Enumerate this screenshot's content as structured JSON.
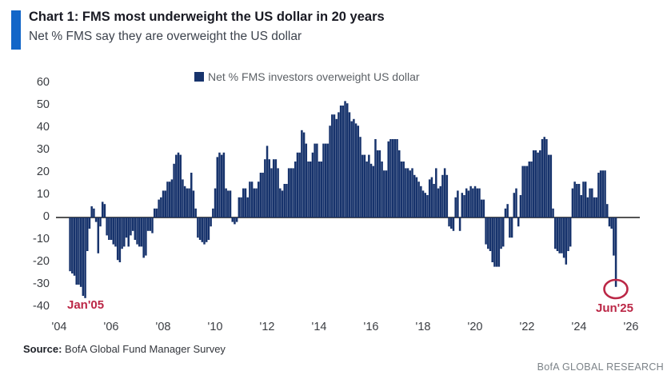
{
  "header": {
    "title": "Chart 1: FMS most underweight the US dollar in 20 years",
    "subtitle": "Net % FMS say they are overweight the US dollar",
    "accent_color": "#1266c8"
  },
  "chart_data": {
    "type": "bar",
    "title": "Chart 1: FMS most underweight the US dollar in 20 years",
    "subtitle": "Net % FMS say they are overweight the US dollar",
    "legend": "Net % FMS investors overweight US dollar",
    "legend_position": "top-center",
    "bar_color": "#17336c",
    "grid": false,
    "ylabel": "",
    "xlabel": "",
    "ylim": [
      -40,
      60
    ],
    "yticks": [
      60,
      50,
      40,
      30,
      20,
      10,
      0,
      -10,
      -20,
      -30,
      -40
    ],
    "xticks": [
      "'04",
      "'06",
      "'08",
      "'10",
      "'12",
      "'14",
      "'16",
      "'18",
      "'20",
      "'22",
      "'24",
      "'26"
    ],
    "frequency": "monthly",
    "x_start": "2004-06",
    "x_end": "2025-06",
    "annotations": [
      {
        "text": "Jan'05",
        "month": "2005-01",
        "value": -36,
        "color": "#bb2746",
        "circled": false
      },
      {
        "text": "Jun'25",
        "month": "2025-06",
        "value": -31,
        "color": "#bb2746",
        "circled": true
      }
    ],
    "series": [
      {
        "name": "Net % FMS investors overweight US dollar",
        "values": [
          -24,
          -25,
          -26,
          -30,
          -30,
          -31,
          -35,
          -36,
          -15,
          -5,
          5,
          4,
          -2,
          -16,
          -4,
          7,
          6,
          -8,
          -10,
          -10,
          -12,
          -13,
          -19,
          -20,
          -14,
          -13,
          -9,
          -13,
          -8,
          -6,
          -10,
          -12,
          -13,
          -13,
          -18,
          -17,
          -6,
          -6,
          -7,
          4,
          4,
          8,
          9,
          12,
          12,
          16,
          16,
          17,
          24,
          28,
          29,
          28,
          17,
          14,
          13,
          13,
          20,
          12,
          4,
          -9,
          -10,
          -11,
          -12,
          -11,
          -10,
          -4,
          4,
          13,
          27,
          29,
          28,
          29,
          13,
          12,
          12,
          -2,
          -3,
          -2,
          9,
          9,
          13,
          13,
          9,
          16,
          16,
          13,
          13,
          16,
          20,
          20,
          26,
          32,
          26,
          22,
          26,
          26,
          22,
          13,
          12,
          15,
          15,
          22,
          22,
          22,
          25,
          29,
          29,
          39,
          38,
          33,
          25,
          25,
          29,
          33,
          33,
          25,
          25,
          33,
          33,
          33,
          41,
          46,
          46,
          44,
          47,
          50,
          50,
          52,
          51,
          47,
          43,
          44,
          42,
          41,
          36,
          28,
          28,
          25,
          28,
          24,
          23,
          35,
          30,
          30,
          25,
          21,
          21,
          34,
          35,
          35,
          35,
          35,
          30,
          25,
          25,
          22,
          22,
          21,
          22,
          19,
          18,
          16,
          14,
          12,
          11,
          10,
          17,
          18,
          15,
          22,
          13,
          14,
          19,
          22,
          19,
          -4,
          -5,
          -6,
          9,
          12,
          -6,
          11,
          10,
          13,
          12,
          14,
          13,
          14,
          13,
          13,
          8,
          8,
          -12,
          -14,
          -15,
          -20,
          -22,
          -22,
          -22,
          -14,
          -13,
          4,
          6,
          -9,
          -9,
          11,
          13,
          -4,
          10,
          23,
          23,
          23,
          25,
          25,
          30,
          30,
          29,
          30,
          35,
          36,
          35,
          28,
          28,
          4,
          -14,
          -15,
          -16,
          -16,
          -18,
          -21,
          -15,
          -13,
          13,
          16,
          15,
          15,
          10,
          16,
          16,
          9,
          13,
          13,
          9,
          9,
          20,
          21,
          21,
          21,
          6,
          -4,
          -5,
          -17,
          -31
        ]
      }
    ]
  },
  "footer": {
    "source_label": "Source:",
    "source_text": "BofA Global Fund Manager Survey",
    "brand": "BofA GLOBAL RESEARCH"
  }
}
